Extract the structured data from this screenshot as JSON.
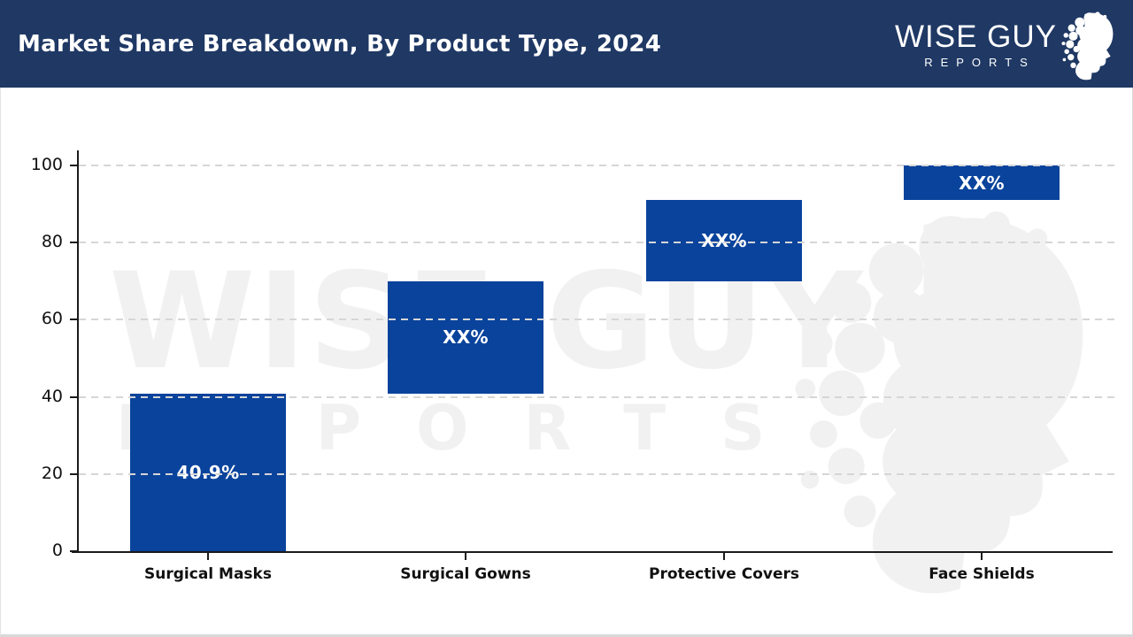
{
  "header": {
    "title": "Market Share Breakdown, By Product Type, 2024",
    "bg_color": "#1f3864",
    "logo": {
      "line1": "WISE GUY",
      "line2": "REPORTS"
    }
  },
  "watermark": {
    "line1": "WISE GUY",
    "line2": "REPORTS"
  },
  "chart_data": {
    "type": "bar",
    "subtype": "floating-segment (stacked waterfall of market share)",
    "title": "Market Share Breakdown, By Product Type, 2024",
    "categories": [
      "Surgical Masks",
      "Surgical Gowns",
      "Protective Covers",
      "Face Shields"
    ],
    "bars": [
      {
        "category": "Surgical Masks",
        "start": 0,
        "end": 40.9,
        "label": "40.9%"
      },
      {
        "category": "Surgical Gowns",
        "start": 40.9,
        "end": 70,
        "label": "XX%"
      },
      {
        "category": "Protective Covers",
        "start": 70,
        "end": 91,
        "label": "XX%"
      },
      {
        "category": "Face Shields",
        "start": 91,
        "end": 100,
        "label": "XX%"
      }
    ],
    "yticks": [
      0,
      20,
      40,
      60,
      80,
      100
    ],
    "ylim": [
      0,
      104
    ],
    "xlabel": "",
    "ylabel": "",
    "grid": "horizontal dashed, drawn above bars",
    "legend": "none",
    "bar_color": "#09439c",
    "bar_label_color": "#ffffff",
    "axis_color": "#1a1a1a",
    "gridline_color": "#d6d6d6"
  }
}
